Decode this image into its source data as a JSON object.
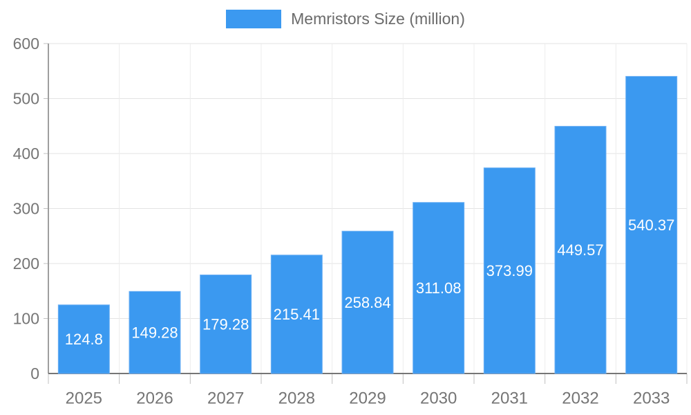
{
  "legend": {
    "label": "Memristors Size (million)"
  },
  "colors": {
    "bar_fill": "#3b99f0",
    "bar_stroke": "#6db0f4",
    "value_text": "#ffffff",
    "axis_text": "#757575",
    "legend_text": "#6b6b6b",
    "grid_horizontal": "#e3e3e3",
    "grid_vertical": "#ececec",
    "axis_line": "#9e9e9e",
    "baseline": "#757575",
    "tick_mark": "#c0c0c0",
    "background": "#ffffff"
  },
  "chart_data": {
    "type": "bar",
    "title": "",
    "xlabel": "",
    "ylabel": "",
    "series_name": "Memristors Size (million)",
    "categories": [
      "2025",
      "2026",
      "2027",
      "2028",
      "2029",
      "2030",
      "2031",
      "2032",
      "2033"
    ],
    "values": [
      124.8,
      149.28,
      179.28,
      215.41,
      258.84,
      311.08,
      373.99,
      449.57,
      540.37
    ],
    "value_labels": [
      "124.8",
      "149.28",
      "179.28",
      "215.41",
      "258.84",
      "311.08",
      "373.99",
      "449.57",
      "540.37"
    ],
    "ylim": [
      0,
      600
    ],
    "yticks": [
      0,
      100,
      200,
      300,
      400,
      500,
      600
    ],
    "grid": true,
    "legend_position": "top"
  }
}
